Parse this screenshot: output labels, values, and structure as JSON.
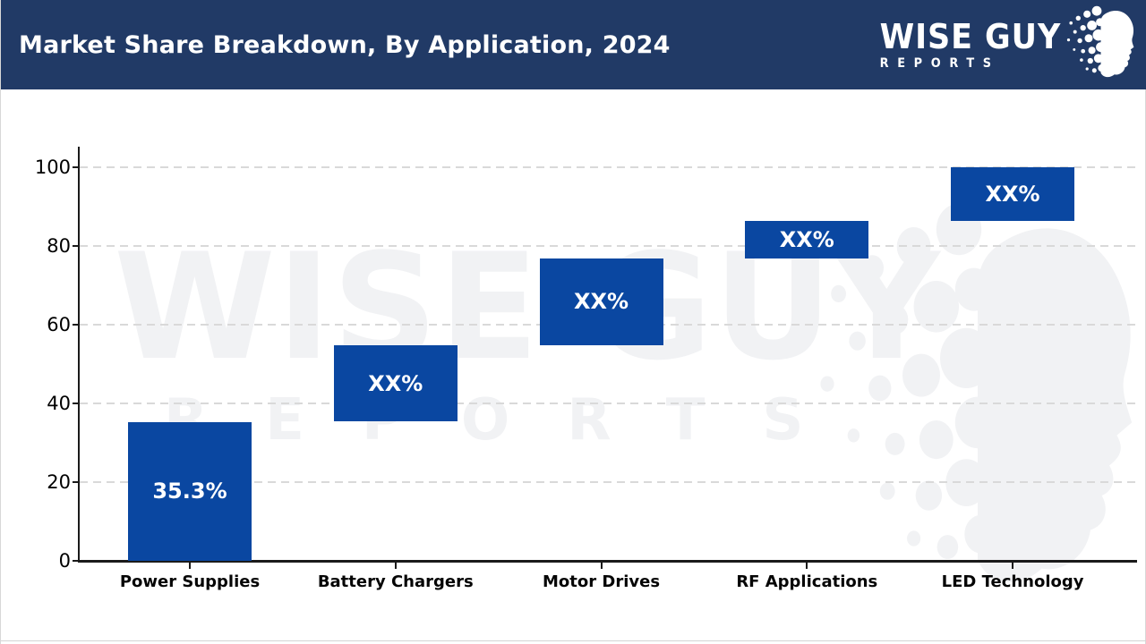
{
  "header": {
    "title": "Market Share Breakdown, By Application, 2024",
    "logo": {
      "line1": "WISE GUY",
      "line2": "REPORTS"
    }
  },
  "watermark": {
    "line1": "WISE GUY",
    "line2": "REPORTS"
  },
  "chart_data": {
    "type": "bar",
    "subtype": "waterfall",
    "title": "Market Share Breakdown, By Application, 2024",
    "xlabel": "",
    "ylabel": "",
    "categories": [
      "Power Supplies",
      "Battery Chargers",
      "Motor Drives",
      "RF Applications",
      "LED Technology"
    ],
    "segments": [
      {
        "category": "Power Supplies",
        "start": 0,
        "end": 35.3,
        "increment": 35.3,
        "label": "35.3%"
      },
      {
        "category": "Battery Chargers",
        "start": 35.3,
        "end": 54.8,
        "increment": 19.5,
        "label": "XX%"
      },
      {
        "category": "Motor Drives",
        "start": 54.8,
        "end": 76.8,
        "increment": 22.0,
        "label": "XX%"
      },
      {
        "category": "RF Applications",
        "start": 76.8,
        "end": 86.2,
        "increment": 9.4,
        "label": "XX%"
      },
      {
        "category": "LED Technology",
        "start": 86.2,
        "end": 100.0,
        "increment": 13.8,
        "label": "XX%"
      }
    ],
    "yticks": [
      0,
      20,
      40,
      60,
      80,
      100
    ],
    "ylim": [
      0,
      105
    ],
    "grid": "horizontal dashed",
    "legend": "none",
    "bar_color": "#0a47a1",
    "value_label_color": "#ffffff",
    "note": "Values other than first bar are masked as XX% in source image"
  }
}
